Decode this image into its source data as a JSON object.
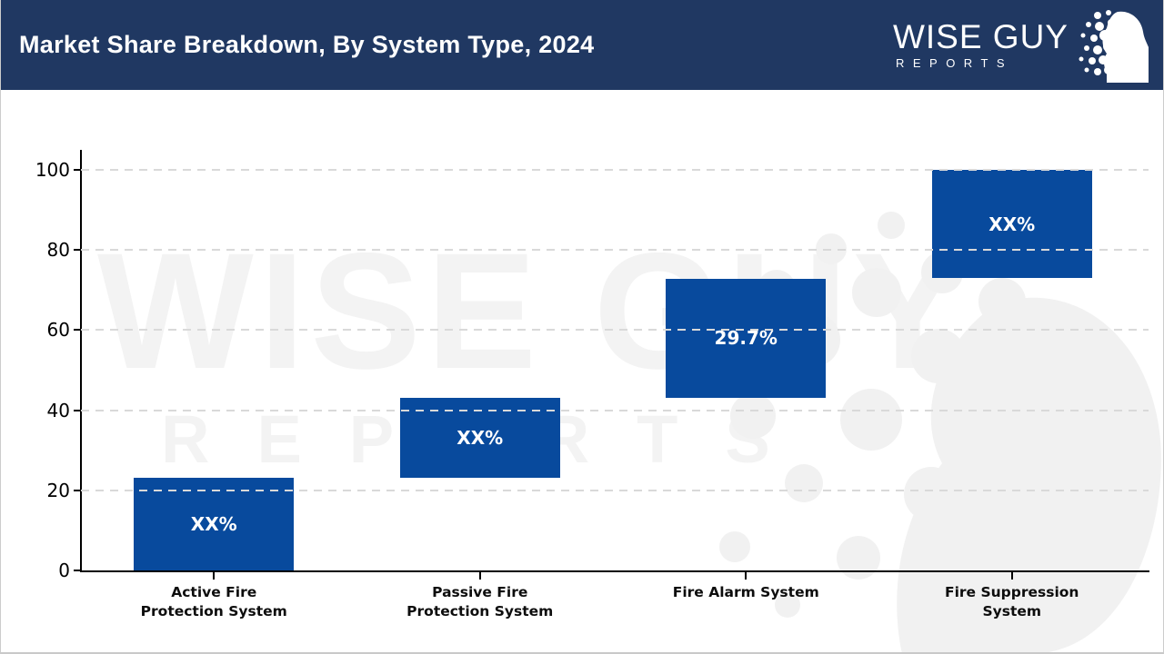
{
  "header": {
    "title": "Market Share Breakdown, By System Type, 2024",
    "bg_color": "#203862",
    "logo": {
      "wordmark": "WISE GUY",
      "subtext": "REPORTS"
    }
  },
  "watermark": {
    "wordmark": "WISE GUY",
    "subtext": "REPORTS",
    "color": "#f3f3f3"
  },
  "chart_data": {
    "type": "bar",
    "subtype": "floating_segment_waterfall",
    "title": "Market Share Breakdown, By System Type, 2024",
    "categories": [
      [
        "Active Fire",
        "Protection System"
      ],
      [
        "Passive Fire",
        "Protection System"
      ],
      [
        "Fire Alarm System"
      ],
      [
        "Fire Suppression",
        "System"
      ]
    ],
    "bars": [
      {
        "category": "Active Fire Protection System",
        "start": 0,
        "end": 23.1,
        "label": "XX%"
      },
      {
        "category": "Passive Fire Protection System",
        "start": 23.1,
        "end": 43.1,
        "label": "XX%"
      },
      {
        "category": "Fire Alarm System",
        "start": 43.1,
        "end": 72.8,
        "label": "29.7%"
      },
      {
        "category": "Fire Suppression System",
        "start": 73,
        "end": 100,
        "label": "XX%"
      }
    ],
    "ylim": [
      0,
      105
    ],
    "yticks": [
      0,
      20,
      40,
      60,
      80,
      100
    ],
    "grid": {
      "axis": "y",
      "style": "dashed",
      "drawn_over_bars": true
    },
    "grid_color": "#d9d9d9",
    "bar_color": "#084a9d",
    "bar_label_color": "#ffffff",
    "axis_color": "#000000",
    "legend": "none"
  }
}
